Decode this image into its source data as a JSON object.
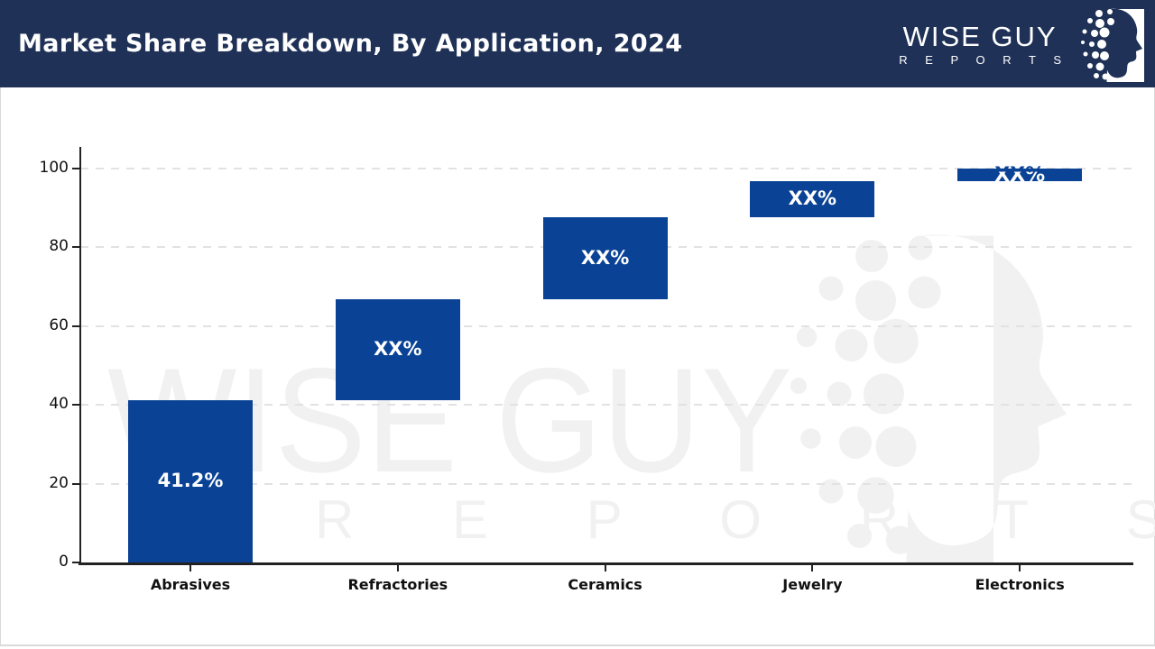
{
  "header": {
    "title": "Market Share Breakdown, By Application, 2024",
    "logo": {
      "line1": "WISE GUY",
      "line2": "R E P O R T S"
    }
  },
  "watermark": {
    "line1": "WISE GUY",
    "line2": "R E P O R T S"
  },
  "colors": {
    "header_bg": "#1f3157",
    "bar": "#0a4396",
    "grid": "#e2e2e2",
    "axis": "#222222",
    "bar_label": "#ffffff",
    "watermark": "#f1f1f1"
  },
  "chart_data": {
    "type": "bar",
    "subtype": "waterfall-floating-bars",
    "title": "Market Share Breakdown, By Application, 2024",
    "categories": [
      "Abrasives",
      "Refractories",
      "Ceramics",
      "Jewelry",
      "Electronics"
    ],
    "series": [
      {
        "name": "Market Share %",
        "segments": [
          {
            "category": "Abrasives",
            "start": 0,
            "end": 41.2,
            "label": "41.2%"
          },
          {
            "category": "Refractories",
            "start": 41.2,
            "end": 66.8,
            "label": "XX%"
          },
          {
            "category": "Ceramics",
            "start": 66.8,
            "end": 87.6,
            "label": "XX%"
          },
          {
            "category": "Jewelry",
            "start": 87.6,
            "end": 96.8,
            "label": "XX%"
          },
          {
            "category": "Electronics",
            "start": 96.8,
            "end": 100,
            "label": "XX%"
          }
        ]
      }
    ],
    "y_ticks": [
      0,
      20,
      40,
      60,
      80,
      100
    ],
    "ylim": [
      0,
      105
    ],
    "xlabel": "",
    "ylabel": "",
    "grid": "horizontal-dashed",
    "legend": "none"
  }
}
